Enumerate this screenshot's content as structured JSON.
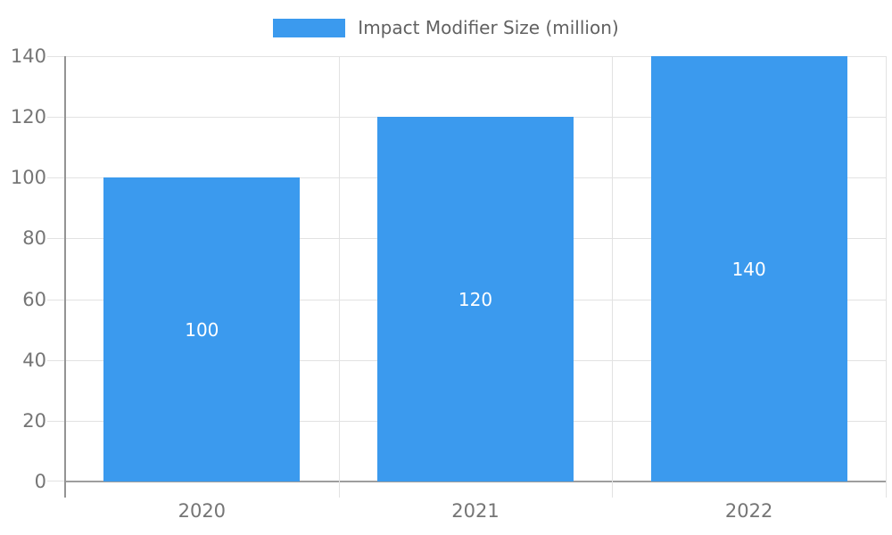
{
  "legend": {
    "label": "Impact Modifier Size (million)"
  },
  "colors": {
    "bar": "#3B9AEE",
    "grid": "#e2e2e2",
    "axis": "#949494",
    "tick_label": "#757575",
    "legend_text": "#616161",
    "annotation": "#ffffff",
    "background": "#ffffff"
  },
  "chart_data": {
    "type": "bar",
    "categories": [
      "2020",
      "2021",
      "2022"
    ],
    "series": [
      {
        "name": "Impact Modifier Size (million)",
        "values": [
          100,
          120,
          140
        ]
      }
    ],
    "bar_labels": [
      "100",
      "120",
      "140"
    ],
    "title": "",
    "xlabel": "",
    "ylabel": "",
    "ylim": [
      0,
      140
    ],
    "ytick_step": 20,
    "ytick_labels": [
      "0",
      "20",
      "40",
      "60",
      "80",
      "100",
      "120",
      "140"
    ],
    "grid": true,
    "legend_position": "top-center"
  }
}
